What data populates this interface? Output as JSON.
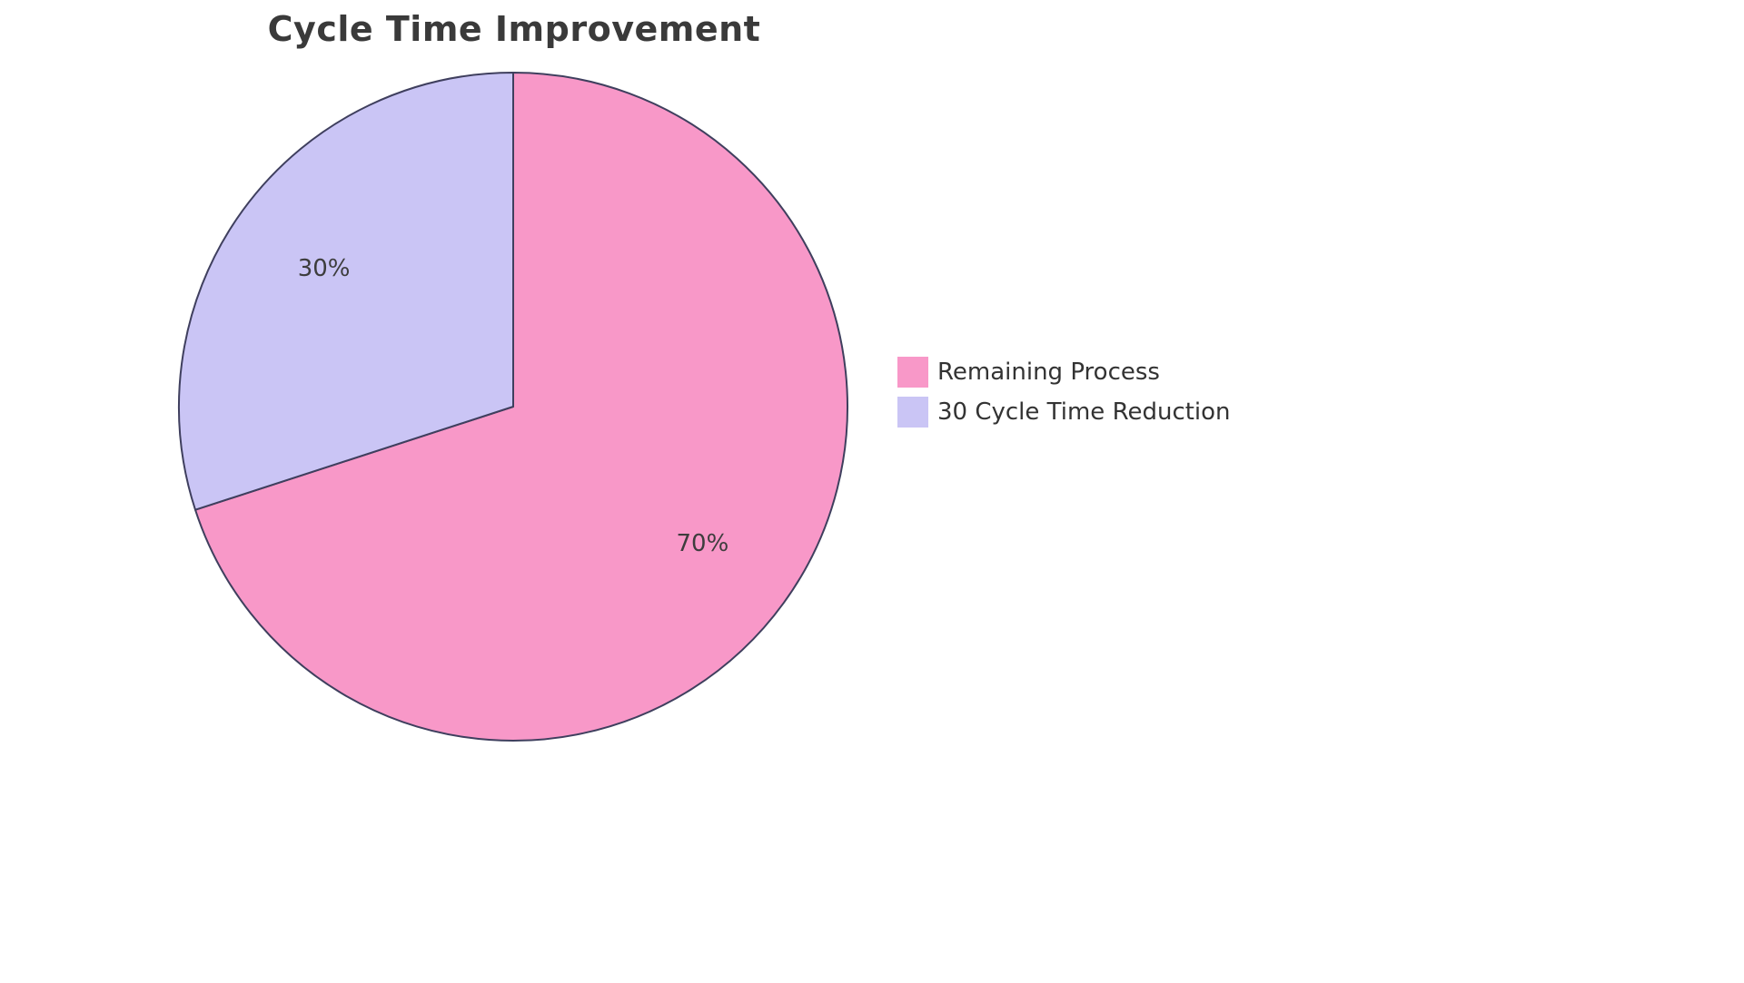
{
  "chart_data": {
    "type": "pie",
    "title": "Cycle Time Improvement",
    "labels": [
      "Remaining Process",
      "30 Cycle Time Reduction"
    ],
    "values": [
      70,
      30
    ],
    "percent_labels": [
      "70%",
      "30%"
    ],
    "colors": [
      "#F898C8",
      "#CAC5F5"
    ],
    "stroke_color": "#3F3F5E",
    "stroke_width": 2,
    "background_color": "#FFFFFF",
    "title_color": "#3A3A3A",
    "label_color": "#3D3D3D",
    "legend_position": "right",
    "start_angle_deg": 0,
    "direction": "clockwise"
  },
  "geometry_note": "pie centered left of legend, 30% slice upper-left, 70% slice covering right and bottom"
}
